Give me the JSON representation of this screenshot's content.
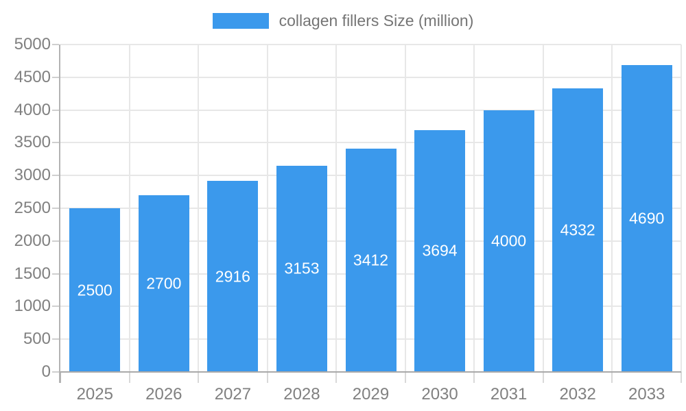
{
  "legend": {
    "label": "collagen fillers Size (million)"
  },
  "chart_data": {
    "type": "bar",
    "title": "collagen fillers Size (million)",
    "categories": [
      "2025",
      "2026",
      "2027",
      "2028",
      "2029",
      "2030",
      "2031",
      "2032",
      "2033"
    ],
    "series": [
      {
        "name": "collagen fillers Size (million)",
        "values": [
          2500,
          2700,
          2916,
          3153,
          3412,
          3694,
          4000,
          4332,
          4690
        ]
      }
    ],
    "xlabel": "",
    "ylabel": "",
    "ylim": [
      0,
      5000
    ],
    "ytick_step": 500,
    "grid": true,
    "legend_position": "top",
    "data_labels": true,
    "bar_color": "#3b99ec",
    "bar_label_color": "#ffffff",
    "axis_text_color": "#808080"
  }
}
